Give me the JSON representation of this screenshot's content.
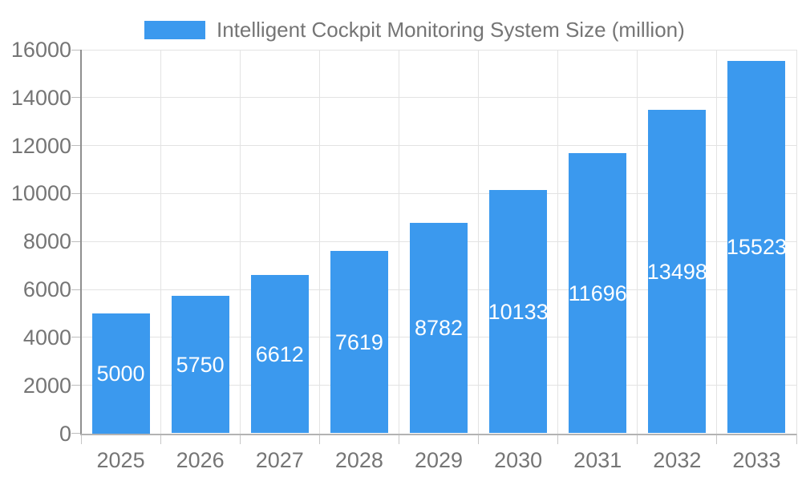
{
  "chart_data": {
    "type": "bar",
    "title": "Intelligent Cockpit Monitoring System Size (million)",
    "categories": [
      "2025",
      "2026",
      "2027",
      "2028",
      "2029",
      "2030",
      "2031",
      "2032",
      "2033"
    ],
    "values": [
      5000,
      5750,
      6612,
      7619,
      8782,
      10133,
      11696,
      13498,
      15523
    ],
    "xlabel": "",
    "ylabel": "",
    "ylim": [
      0,
      16000
    ],
    "yticks": [
      0,
      2000,
      4000,
      6000,
      8000,
      10000,
      12000,
      14000,
      16000
    ],
    "grid": "horizontal-and-vertical",
    "legend_position": "top-center",
    "bar_color": "#3b99ee",
    "bar_label_color": "#ffffff",
    "axis_text_color": "#757575"
  }
}
